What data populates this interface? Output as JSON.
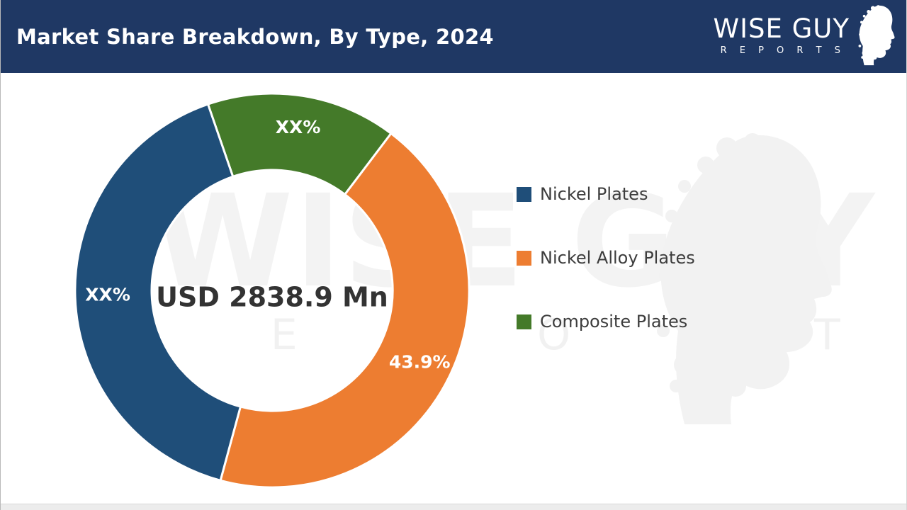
{
  "header": {
    "title": "Market Share Breakdown, By Type, 2024",
    "background": "#1F3864",
    "logo": {
      "line1": "WISE GUY",
      "line2": "R E P O R T S"
    }
  },
  "watermark": {
    "line1": "WISE GUY",
    "line2": "R E P O R T S"
  },
  "chart_data": {
    "type": "pie",
    "subtype": "donut",
    "title": "Market Share Breakdown, By Type, 2024",
    "center_label": "USD 2838.9 Mn",
    "start_angle_deg": -19,
    "legend_position": "right",
    "slices": [
      {
        "name": "Composite Plates",
        "label": "XX%",
        "value_pct_est": 15.6,
        "color": "#447A29"
      },
      {
        "name": "Nickel Alloy Plates",
        "label": "43.9%",
        "value_pct_est": 43.9,
        "color": "#ED7D31"
      },
      {
        "name": "Nickel Plates",
        "label": "XX%",
        "value_pct_est": 40.5,
        "color": "#1F4E79"
      }
    ],
    "legend": [
      {
        "name": "Nickel Plates",
        "color": "#1F4E79"
      },
      {
        "name": "Nickel Alloy Plates",
        "color": "#ED7D31"
      },
      {
        "name": "Composite Plates",
        "color": "#447A29"
      }
    ]
  }
}
